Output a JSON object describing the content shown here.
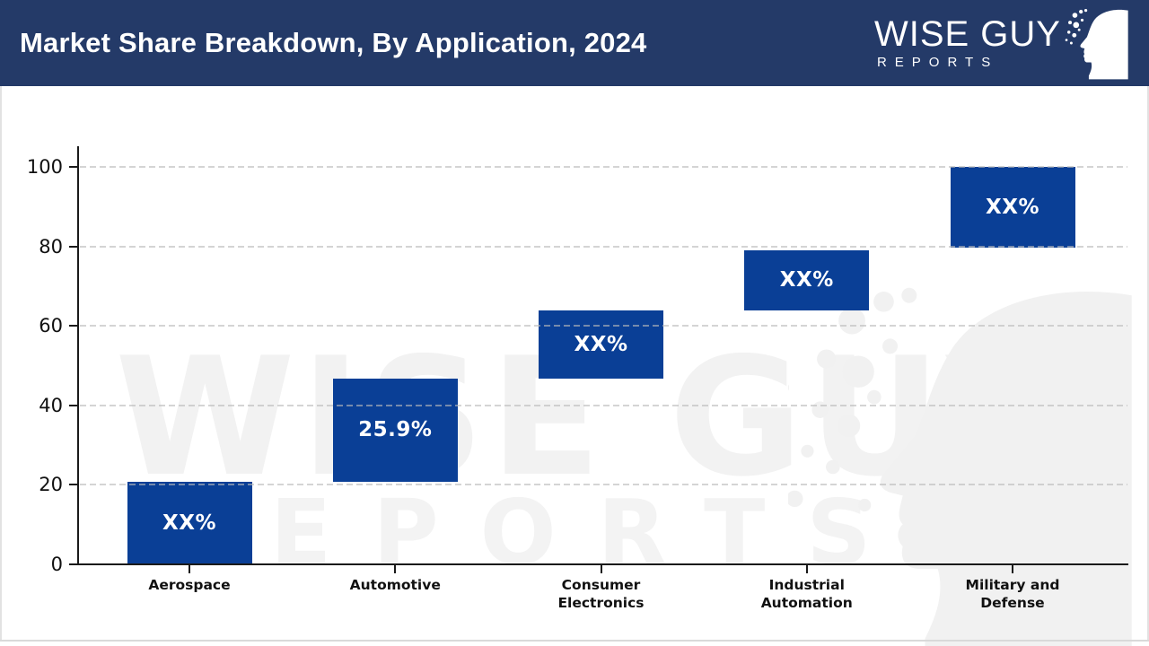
{
  "header": {
    "title": "Market Share Breakdown, By Application, 2024",
    "bg_color": "#243a68",
    "logo": {
      "line1": "WISE GUY",
      "line2": "REPORTS"
    }
  },
  "watermark": {
    "line1": "WISE GUY",
    "line2": "REPORTS"
  },
  "chart_data": {
    "type": "bar",
    "subtype": "floating-waterfall",
    "title": "Market Share Breakdown, By Application, 2024",
    "categories": [
      "Aerospace",
      "Automotive",
      "Consumer Electronics",
      "Industrial Automation",
      "Military and Defense"
    ],
    "bars": [
      {
        "category": "Aerospace",
        "start": 0,
        "end": 20.8,
        "label": "XX%"
      },
      {
        "category": "Automotive",
        "start": 20.8,
        "end": 46.7,
        "label": "25.9%"
      },
      {
        "category": "Consumer Electronics",
        "start": 46.8,
        "end": 63.9,
        "label": "XX%"
      },
      {
        "category": "Industrial Automation",
        "start": 63.9,
        "end": 79.0,
        "label": "XX%"
      },
      {
        "category": "Military and Defense",
        "start": 79.7,
        "end": 100,
        "label": "XX%"
      }
    ],
    "bar_color": "#0a3f96",
    "label_color": "#ffffff",
    "xlabel": "",
    "ylabel": "",
    "ylim": [
      0,
      100
    ],
    "yticks": [
      0,
      20,
      40,
      60,
      80,
      100
    ],
    "grid": "dashed horizontal",
    "legend": "none"
  }
}
